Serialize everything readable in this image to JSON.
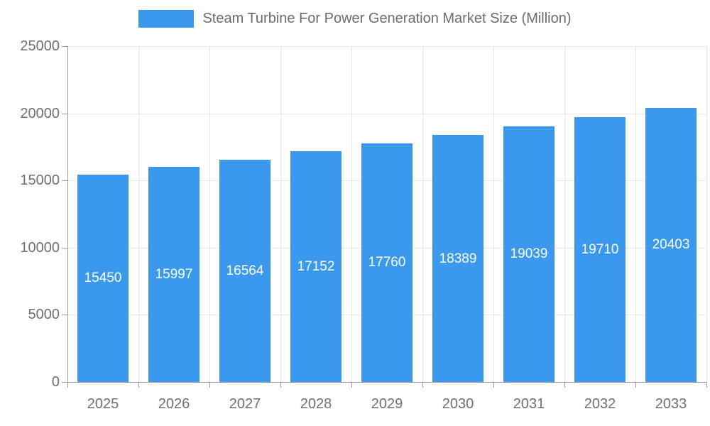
{
  "legend": {
    "label": "Steam Turbine For Power Generation Market Size (Million)"
  },
  "colors": {
    "bar": "#3A99EC",
    "axis": "#9A9A9A",
    "grid": "#E6E6E6",
    "tick_label": "#6F6F6F",
    "legend_text": "#6B6B6B",
    "value_label": "#FFFFFF",
    "background": "#FFFFFF"
  },
  "chart_data": {
    "type": "bar",
    "title": "Steam Turbine For Power Generation Market Size (Million)",
    "categories": [
      "2025",
      "2026",
      "2027",
      "2028",
      "2029",
      "2030",
      "2031",
      "2032",
      "2033"
    ],
    "values": [
      15450,
      15997,
      16564,
      17152,
      17760,
      18389,
      19039,
      19710,
      20403
    ],
    "xlabel": "",
    "ylabel": "",
    "ylim": [
      0,
      25000
    ],
    "yticks": [
      0,
      5000,
      10000,
      15000,
      20000,
      25000
    ],
    "grid": true,
    "legend_position": "top",
    "value_label_position": "inside-middle"
  }
}
